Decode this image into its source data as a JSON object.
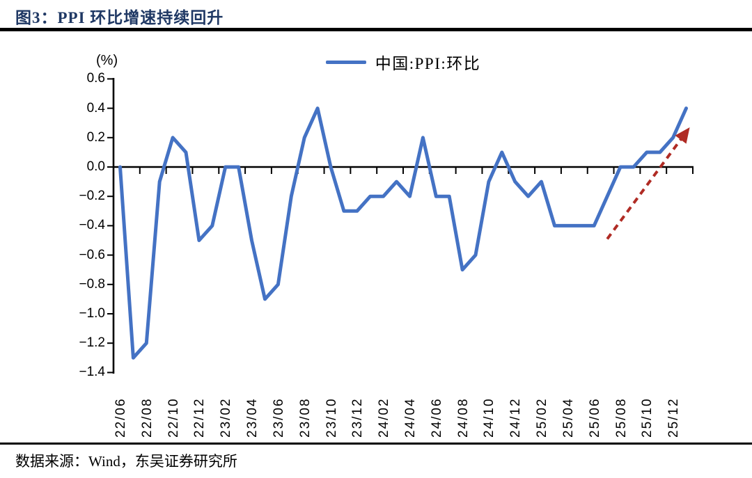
{
  "page": {
    "figure_title": "图3：PPI 环比增速持续回升",
    "source_note": "数据来源：Wind，东吴证券研究所"
  },
  "chart_data": {
    "type": "line",
    "title": "图3：PPI 环比增速持续回升",
    "unit_label": "(%)",
    "legend_label": "中国:PPI:环比",
    "legend_position": "top-center",
    "grid": false,
    "colors": {
      "line": "#4472C4",
      "arrow": "#B02B24",
      "title": "#1F3864",
      "axis": "#000000"
    },
    "ylim": [
      -1.4,
      0.6
    ],
    "y_tick_labels": [
      "0.6",
      "0.4",
      "0.2",
      "0.0",
      "−0.2",
      "−0.4",
      "−0.6",
      "−0.8",
      "−1.0",
      "−1.2",
      "−1.4"
    ],
    "x_tick_labels": [
      "22/06",
      "22/08",
      "22/10",
      "22/12",
      "23/02",
      "23/04",
      "23/06",
      "23/08",
      "23/10",
      "23/12",
      "24/02",
      "24/04",
      "24/06",
      "24/08",
      "24/10",
      "24/12",
      "25/02",
      "25/04",
      "25/06",
      "25/08",
      "25/10",
      "25/12"
    ],
    "x": [
      "22/06",
      "22/07",
      "22/08",
      "22/09",
      "22/10",
      "22/11",
      "22/12",
      "23/01",
      "23/02",
      "23/03",
      "23/04",
      "23/05",
      "23/06",
      "23/07",
      "23/08",
      "23/09",
      "23/10",
      "23/11",
      "23/12",
      "24/01",
      "24/02",
      "24/03",
      "24/04",
      "24/05",
      "24/06",
      "24/07",
      "24/08",
      "24/09",
      "24/10",
      "24/11",
      "24/12",
      "25/01",
      "25/02",
      "25/03",
      "25/04",
      "25/05",
      "25/06",
      "25/07",
      "25/08",
      "25/09",
      "25/10",
      "25/11",
      "25/12",
      "26/01"
    ],
    "values": [
      0.0,
      -1.3,
      -1.2,
      -0.1,
      0.2,
      0.1,
      -0.5,
      -0.4,
      0.0,
      0.0,
      -0.5,
      -0.9,
      -0.8,
      -0.2,
      0.2,
      0.4,
      0.0,
      -0.3,
      -0.3,
      -0.2,
      -0.2,
      -0.1,
      -0.2,
      0.2,
      -0.2,
      -0.2,
      -0.7,
      -0.6,
      -0.1,
      0.1,
      -0.1,
      -0.2,
      -0.1,
      -0.4,
      -0.4,
      -0.4,
      -0.4,
      -0.2,
      0.0,
      0.0,
      0.1,
      0.1,
      0.2,
      0.4
    ],
    "annotation": {
      "type": "dashed-arrow",
      "from": {
        "month": "25/07",
        "value": -0.49
      },
      "to": {
        "month": "26/01",
        "value": 0.27
      }
    }
  }
}
